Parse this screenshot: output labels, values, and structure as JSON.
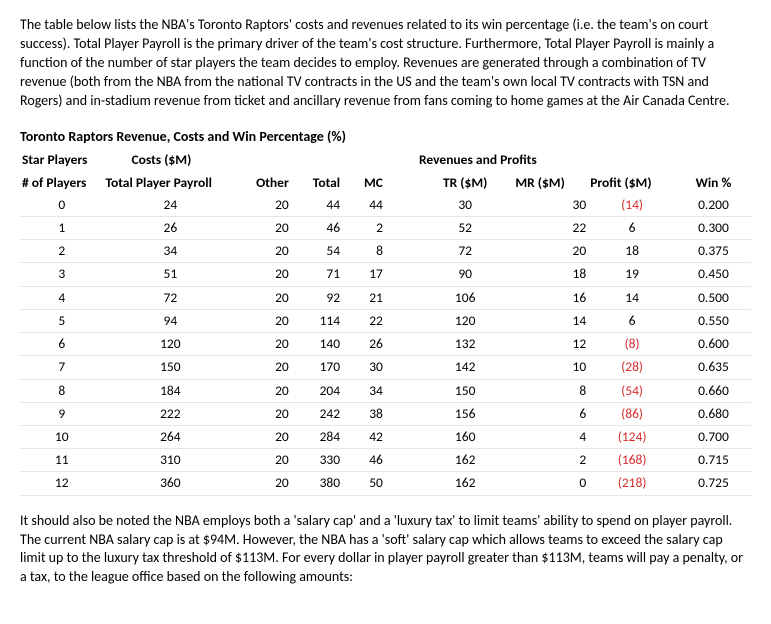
{
  "intro_text": "The table below lists the NBA's Toronto Raptors' costs and revenues related to its win percentage (i.e. the team's on court success).  Total Player Payroll is the primary driver of the team's cost structure.  Furthermore, Total Player Payroll is mainly a function of the number of star players the team decides to employ.   Revenues are generated through a combination of TV revenue (both from the NBA from the national TV contracts in the US and the team's own local TV contracts with TSN and Rogers) and in-stadium revenue from ticket and ancillary revenue from fans coming to home games at the Air Canada Centre.",
  "outro_text": "It should also be noted the NBA employs both a 'salary cap' and a 'luxury tax' to limit teams' ability to spend on player payroll.  The current NBA salary cap is at $94M.  However, the NBA has a 'soft' salary cap which allows teams to exceed the salary cap limit up to the luxury tax threshold of $113M.  For every dollar in player payroll greater than $113M, teams will pay a penalty, or a tax, to the league office based on the following amounts:",
  "table": {
    "title": "Toronto Raptors Revenue, Costs and Win Percentage (%)",
    "super_headers": {
      "star_players": "Star Players",
      "costs": "Costs ($M)",
      "revenues": "Revenues and Profits"
    },
    "columns": {
      "num_players": "# of Players",
      "total_payroll": "Total Player Payroll",
      "other": "Other",
      "total": "Total",
      "mc": "MC",
      "tr": "TR ($M)",
      "mr": "MR ($M)",
      "profit": "Profit ($M)",
      "win": "Win %"
    },
    "rows": [
      {
        "sp": "0",
        "tpp": "24",
        "oth": "20",
        "tot": "44",
        "mc": "44",
        "tr": "30",
        "mr": "30",
        "pr": "(14)",
        "pr_neg": true,
        "win": "0.200"
      },
      {
        "sp": "1",
        "tpp": "26",
        "oth": "20",
        "tot": "46",
        "mc": "2",
        "tr": "52",
        "mr": "22",
        "pr": "6",
        "pr_neg": false,
        "win": "0.300"
      },
      {
        "sp": "2",
        "tpp": "34",
        "oth": "20",
        "tot": "54",
        "mc": "8",
        "tr": "72",
        "mr": "20",
        "pr": "18",
        "pr_neg": false,
        "win": "0.375"
      },
      {
        "sp": "3",
        "tpp": "51",
        "oth": "20",
        "tot": "71",
        "mc": "17",
        "tr": "90",
        "mr": "18",
        "pr": "19",
        "pr_neg": false,
        "win": "0.450"
      },
      {
        "sp": "4",
        "tpp": "72",
        "oth": "20",
        "tot": "92",
        "mc": "21",
        "tr": "106",
        "mr": "16",
        "pr": "14",
        "pr_neg": false,
        "win": "0.500"
      },
      {
        "sp": "5",
        "tpp": "94",
        "oth": "20",
        "tot": "114",
        "mc": "22",
        "tr": "120",
        "mr": "14",
        "pr": "6",
        "pr_neg": false,
        "win": "0.550"
      },
      {
        "sp": "6",
        "tpp": "120",
        "oth": "20",
        "tot": "140",
        "mc": "26",
        "tr": "132",
        "mr": "12",
        "pr": "(8)",
        "pr_neg": true,
        "win": "0.600"
      },
      {
        "sp": "7",
        "tpp": "150",
        "oth": "20",
        "tot": "170",
        "mc": "30",
        "tr": "142",
        "mr": "10",
        "pr": "(28)",
        "pr_neg": true,
        "win": "0.635"
      },
      {
        "sp": "8",
        "tpp": "184",
        "oth": "20",
        "tot": "204",
        "mc": "34",
        "tr": "150",
        "mr": "8",
        "pr": "(54)",
        "pr_neg": true,
        "win": "0.660"
      },
      {
        "sp": "9",
        "tpp": "222",
        "oth": "20",
        "tot": "242",
        "mc": "38",
        "tr": "156",
        "mr": "6",
        "pr": "(86)",
        "pr_neg": true,
        "win": "0.680"
      },
      {
        "sp": "10",
        "tpp": "264",
        "oth": "20",
        "tot": "284",
        "mc": "42",
        "tr": "160",
        "mr": "4",
        "pr": "(124)",
        "pr_neg": true,
        "win": "0.700"
      },
      {
        "sp": "11",
        "tpp": "310",
        "oth": "20",
        "tot": "330",
        "mc": "46",
        "tr": "162",
        "mr": "2",
        "pr": "(168)",
        "pr_neg": true,
        "win": "0.715"
      },
      {
        "sp": "12",
        "tpp": "360",
        "oth": "20",
        "tot": "380",
        "mc": "50",
        "tr": "162",
        "mr": "0",
        "pr": "(218)",
        "pr_neg": true,
        "win": "0.725"
      }
    ]
  }
}
